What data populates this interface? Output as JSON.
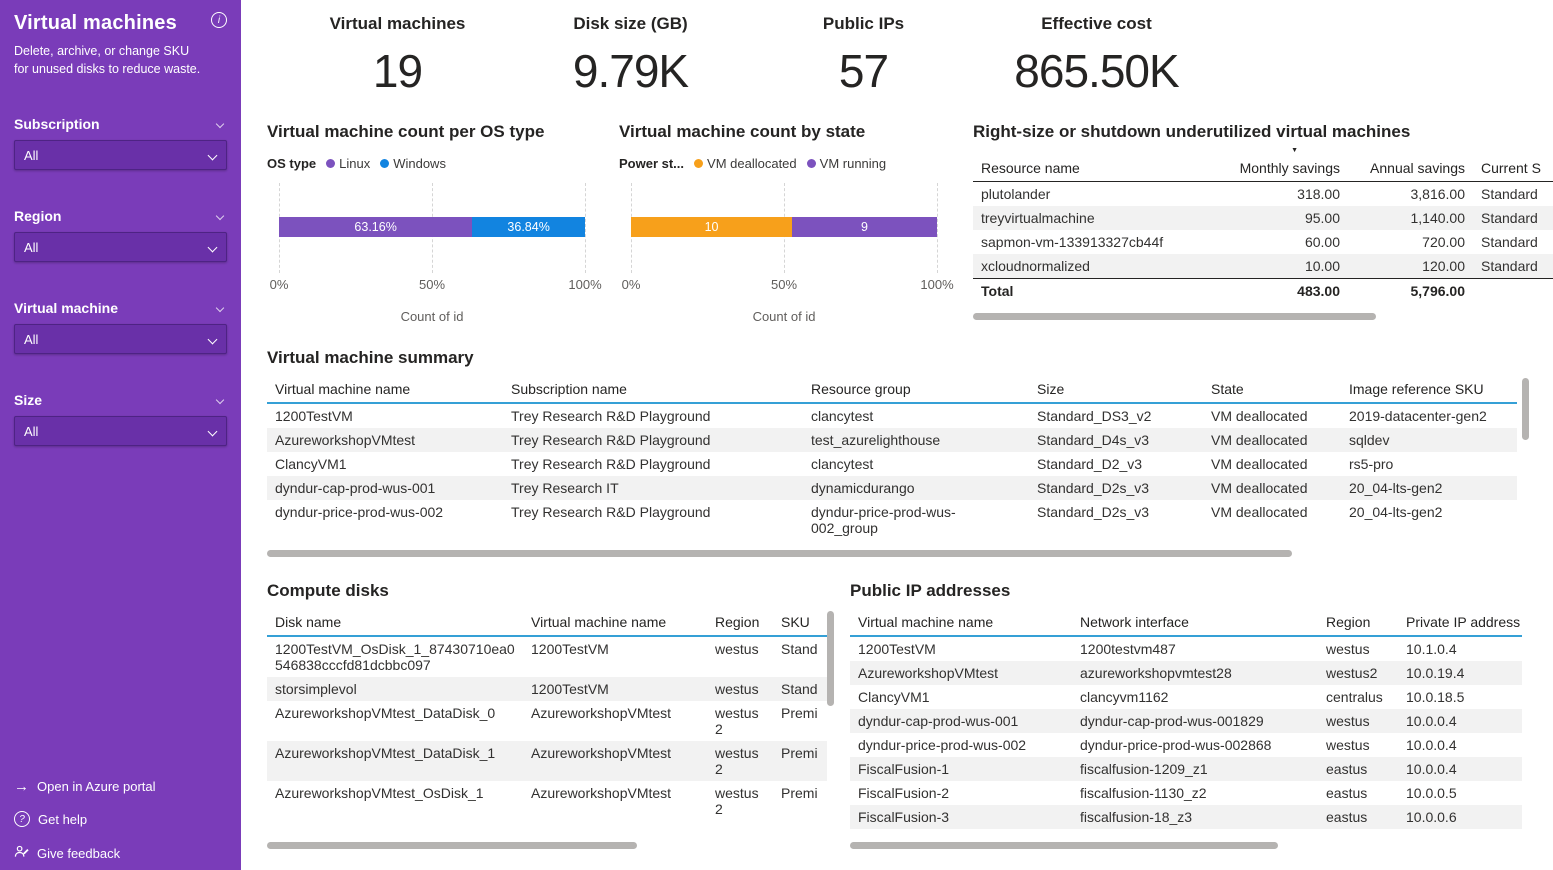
{
  "colors": {
    "sidebar_bg": "#7A3CB9",
    "dropdown_bg": "#6930A8",
    "linux_purple": "#7C52BE",
    "windows_blue": "#1284E0",
    "deallocated_orange": "#F7A01B",
    "running_purple": "#7C52BE",
    "header_underline_blue": "#35A0D6",
    "stripe_gray": "#F2F2F2",
    "text_dark": "#252423"
  },
  "icons": {
    "info": "i",
    "help": "?",
    "arrow": "→",
    "sort_desc": "▼"
  },
  "sidebar": {
    "title": "Virtual machines",
    "subtitle": "Delete, archive, or change SKU for unused disks to reduce waste.",
    "filters": [
      {
        "label": "Subscription",
        "value": "All"
      },
      {
        "label": "Region",
        "value": "All"
      },
      {
        "label": "Virtual machine",
        "value": "All"
      },
      {
        "label": "Size",
        "value": "All"
      }
    ],
    "links": [
      {
        "label": "Open in Azure portal"
      },
      {
        "label": "Get help"
      },
      {
        "label": "Give feedback"
      }
    ]
  },
  "kpis": [
    {
      "label": "Virtual machines",
      "value": "19"
    },
    {
      "label": "Disk size (GB)",
      "value": "9.79K"
    },
    {
      "label": "Public IPs",
      "value": "57"
    },
    {
      "label": "Effective cost",
      "value": "865.50K"
    }
  ],
  "os_chart": {
    "title": "Virtual machine count per OS type",
    "legend_label": "OS type",
    "legend": [
      {
        "name": "Linux",
        "color": "#7C52BE"
      },
      {
        "name": "Windows",
        "color": "#1284E0"
      }
    ],
    "segments": [
      {
        "label": "63.16%",
        "pct": 63.16,
        "color": "#7C52BE"
      },
      {
        "label": "36.84%",
        "pct": 36.84,
        "color": "#1284E0"
      }
    ],
    "ticks": [
      "0%",
      "50%",
      "100%"
    ],
    "xlabel": "Count of id"
  },
  "state_chart": {
    "title": "Virtual machine count by state",
    "legend_label": "Power st...",
    "legend": [
      {
        "name": "VM deallocated",
        "color": "#F7A01B"
      },
      {
        "name": "VM running",
        "color": "#7C52BE"
      }
    ],
    "segments": [
      {
        "label": "10",
        "pct": 52.63,
        "color": "#F7A01B"
      },
      {
        "label": "9",
        "pct": 47.37,
        "color": "#7C52BE"
      }
    ],
    "ticks": [
      "0%",
      "50%",
      "100%"
    ],
    "xlabel": "Count of id"
  },
  "rightsize": {
    "title": "Right-size or shutdown underutilized virtual machines",
    "columns": [
      "Resource name",
      "Monthly savings",
      "Annual savings",
      "Current S"
    ],
    "rows": [
      [
        "plutolander",
        "318.00",
        "3,816.00",
        "Standard"
      ],
      [
        "treyvirtualmachine",
        "95.00",
        "1,140.00",
        "Standard"
      ],
      [
        "sapmon-vm-133913327cb44f",
        "60.00",
        "720.00",
        "Standard"
      ],
      [
        "xcloudnormalized",
        "10.00",
        "120.00",
        "Standard"
      ]
    ],
    "total": [
      "Total",
      "483.00",
      "5,796.00"
    ]
  },
  "vm_summary": {
    "title": "Virtual machine summary",
    "columns": [
      "Virtual machine name",
      "Subscription name",
      "Resource group",
      "Size",
      "State",
      "Image reference SKU"
    ],
    "rows": [
      [
        "1200TestVM",
        "Trey Research R&D Playground",
        "clancytest",
        "Standard_DS3_v2",
        "VM deallocated",
        "2019-datacenter-gen2"
      ],
      [
        "AzureworkshopVMtest",
        "Trey Research R&D Playground",
        "test_azurelighthouse",
        "Standard_D4s_v3",
        "VM deallocated",
        "sqldev"
      ],
      [
        "ClancyVM1",
        "Trey Research R&D Playground",
        "clancytest",
        "Standard_D2_v3",
        "VM deallocated",
        "rs5-pro"
      ],
      [
        "dyndur-cap-prod-wus-001",
        "Trey Research IT",
        "dynamicdurango",
        "Standard_D2s_v3",
        "VM deallocated",
        "20_04-lts-gen2"
      ],
      [
        "dyndur-price-prod-wus-002",
        "Trey Research R&D Playground",
        "dyndur-price-prod-wus-002_group",
        "Standard_D2s_v3",
        "VM deallocated",
        "20_04-lts-gen2"
      ]
    ]
  },
  "compute_disks": {
    "title": "Compute disks",
    "columns": [
      "Disk name",
      "Virtual machine name",
      "Region",
      "SKU"
    ],
    "rows": [
      [
        "1200TestVM_OsDisk_1_87430710ea0546838cccfd81dcbbc097",
        "1200TestVM",
        "westus",
        "Stand"
      ],
      [
        "storsimplevol",
        "1200TestVM",
        "westus",
        "Stand"
      ],
      [
        "AzureworkshopVMtest_DataDisk_0",
        "AzureworkshopVMtest",
        "westus2",
        "Premi"
      ],
      [
        "AzureworkshopVMtest_DataDisk_1",
        "AzureworkshopVMtest",
        "westus2",
        "Premi"
      ],
      [
        "AzureworkshopVMtest_OsDisk_1",
        "AzureworkshopVMtest",
        "westus2",
        "Premi"
      ]
    ]
  },
  "public_ips": {
    "title": "Public IP addresses",
    "columns": [
      "Virtual machine name",
      "Network interface",
      "Region",
      "Private IP address"
    ],
    "rows": [
      [
        "1200TestVM",
        "1200testvm487",
        "westus",
        "10.1.0.4"
      ],
      [
        "AzureworkshopVMtest",
        "azureworkshopvmtest28",
        "westus2",
        "10.0.19.4"
      ],
      [
        "ClancyVM1",
        "clancyvm1162",
        "centralus",
        "10.0.18.5"
      ],
      [
        "dyndur-cap-prod-wus-001",
        "dyndur-cap-prod-wus-001829",
        "westus",
        "10.0.0.4"
      ],
      [
        "dyndur-price-prod-wus-002",
        "dyndur-price-prod-wus-002868",
        "westus",
        "10.0.0.4"
      ],
      [
        "FiscalFusion-1",
        "fiscalfusion-1209_z1",
        "eastus",
        "10.0.0.4"
      ],
      [
        "FiscalFusion-2",
        "fiscalfusion-1130_z2",
        "eastus",
        "10.0.0.5"
      ],
      [
        "FiscalFusion-3",
        "fiscalfusion-18_z3",
        "eastus",
        "10.0.0.6"
      ]
    ]
  },
  "chart_data": [
    {
      "type": "bar",
      "stacked": true,
      "orientation": "horizontal",
      "title": "Virtual machine count per OS type",
      "categories": [
        "Count of id"
      ],
      "series": [
        {
          "name": "Linux",
          "values": [
            63.16
          ]
        },
        {
          "name": "Windows",
          "values": [
            36.84
          ]
        }
      ],
      "value_format": "percent",
      "xlabel": "Count of id",
      "xlim": [
        0,
        100
      ],
      "ticks": [
        "0%",
        "50%",
        "100%"
      ],
      "legend_position": "top",
      "grid": "dashed-vertical"
    },
    {
      "type": "bar",
      "stacked": true,
      "orientation": "horizontal",
      "title": "Virtual machine count by state",
      "categories": [
        "Count of id"
      ],
      "series": [
        {
          "name": "VM deallocated",
          "values": [
            10
          ]
        },
        {
          "name": "VM running",
          "values": [
            9
          ]
        }
      ],
      "xlabel": "Count of id",
      "xlim": [
        0,
        100
      ],
      "ticks": [
        "0%",
        "50%",
        "100%"
      ],
      "legend_position": "top",
      "grid": "dashed-vertical"
    }
  ]
}
